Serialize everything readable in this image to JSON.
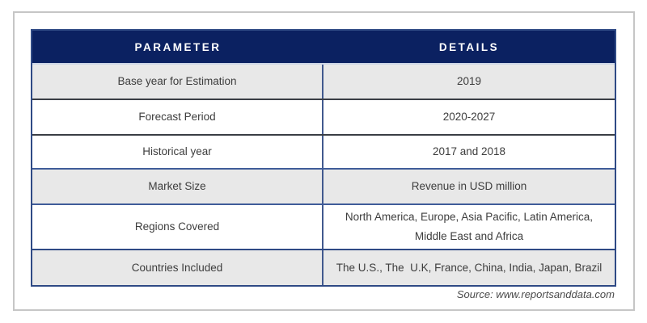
{
  "table": {
    "header": [
      "PARAMETER",
      "DETAILS"
    ],
    "rows": [
      {
        "parameter": "Base year for Estimation",
        "details": "2019"
      },
      {
        "parameter": "Forecast Period",
        "details": "2020-2027"
      },
      {
        "parameter": "Historical year",
        "details": "2017 and 2018"
      },
      {
        "parameter": "Market Size",
        "details": "Revenue in USD million"
      },
      {
        "parameter": "Regions Covered",
        "details": "North America, Europe, Asia Pacific, Latin America, Middle East and Africa"
      },
      {
        "parameter": "Countries Included",
        "details": "The U.S., The  U.K, France, China, India, Japan, Brazil"
      }
    ],
    "colors": {
      "header_bg": "#0b2161",
      "header_text": "#ffffff",
      "row_alt_bg": "#e8e8e8",
      "row_bg": "#ffffff",
      "outer_border": "#2f4a85",
      "column_divider": "#41598e",
      "row_border_dark": "#3a3e45",
      "row_border_blue": "#3f5c99",
      "cell_text": "#3d3d3d",
      "panel_border": "#c6c6c6"
    }
  },
  "footer": {
    "source_note": "Source: www.reportsanddata.com"
  }
}
